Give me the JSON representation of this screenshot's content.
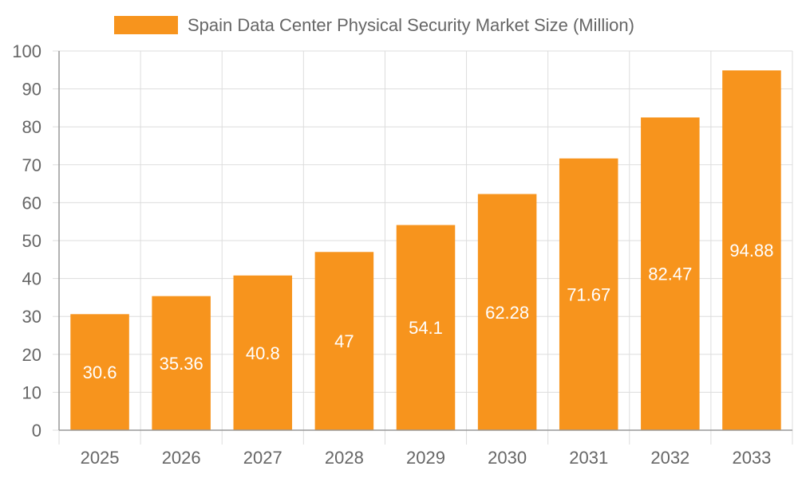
{
  "chart_data": {
    "type": "bar",
    "title": "",
    "xlabel": "",
    "ylabel": "",
    "legend": {
      "position": "top",
      "entries": [
        "Spain Data Center Physical Security Market Size (Million)"
      ]
    },
    "categories": [
      "2025",
      "2026",
      "2027",
      "2028",
      "2029",
      "2030",
      "2031",
      "2032",
      "2033"
    ],
    "series": [
      {
        "name": "Spain Data Center Physical Security Market Size (Million)",
        "values": [
          30.6,
          35.36,
          40.8,
          47,
          54.1,
          62.28,
          71.67,
          82.47,
          94.88
        ],
        "color": "#F7941D"
      }
    ],
    "data_labels": [
      "30.6",
      "35.36",
      "40.8",
      "47",
      "54.1",
      "62.28",
      "71.67",
      "82.47",
      "94.88"
    ],
    "ylim": [
      0,
      100
    ],
    "yticks": [
      0,
      10,
      20,
      30,
      40,
      50,
      60,
      70,
      80,
      90,
      100
    ],
    "grid": true
  }
}
